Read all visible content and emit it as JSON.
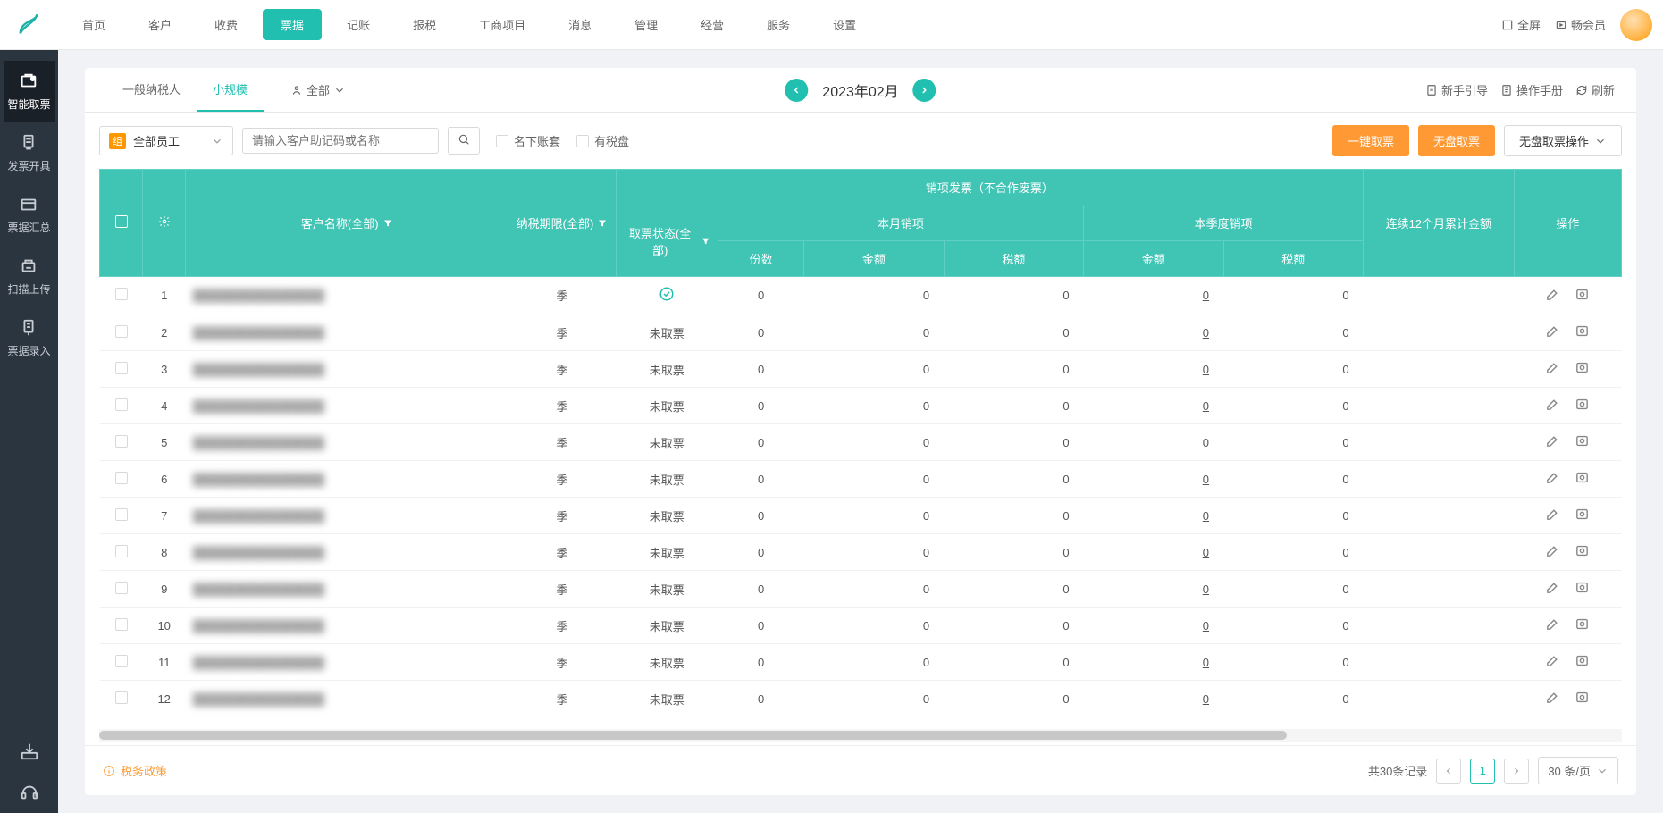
{
  "topnav": {
    "items": [
      "首页",
      "客户",
      "收费",
      "票据",
      "记账",
      "报税",
      "工商项目",
      "消息",
      "管理",
      "经营",
      "服务",
      "设置"
    ],
    "active_index": 3,
    "fullscreen": "全屏",
    "member": "畅会员"
  },
  "sidebar": {
    "items": [
      {
        "label": "智能取票"
      },
      {
        "label": "发票开具"
      },
      {
        "label": "票据汇总"
      },
      {
        "label": "扫描上传"
      },
      {
        "label": "票据录入"
      }
    ],
    "active_index": 0
  },
  "tabs": {
    "items": [
      "一般纳税人",
      "小规模"
    ],
    "active_index": 1,
    "scope_label": "全部",
    "period": "2023年02月",
    "guide": "新手引导",
    "manual": "操作手册",
    "refresh": "刷新"
  },
  "toolbar": {
    "staff_label": "全部员工",
    "search_placeholder": "请输入客户助记码或名称",
    "chk_sub": "名下账套",
    "chk_disk": "有税盘",
    "btn_fetch": "一键取票",
    "btn_nodisk_fetch": "无盘取票",
    "btn_nodisk_ops": "无盘取票操作"
  },
  "table": {
    "group_header": "销项发票（不合作废票）",
    "cols": {
      "customer": "客户名称(全部)",
      "tax_period": "纳税期限(全部)",
      "fetch_status": "取票状态(全部)",
      "month_group": "本月销项",
      "quarter_group": "本季度销项",
      "count": "份数",
      "amount": "金额",
      "tax": "税额",
      "rolling12": "连续12个月累计金额",
      "ops": "操作"
    },
    "status_pending": "未取票",
    "rows": [
      {
        "idx": 1,
        "period": "季",
        "status": "ok",
        "m_cnt": 0,
        "m_amt": "0",
        "m_tax": "0",
        "q_amt": "0",
        "q_tax": "0"
      },
      {
        "idx": 2,
        "period": "季",
        "status": "pending",
        "m_cnt": 0,
        "m_amt": "0",
        "m_tax": "0",
        "q_amt": "0",
        "q_tax": "0"
      },
      {
        "idx": 3,
        "period": "季",
        "status": "pending",
        "m_cnt": 0,
        "m_amt": "0",
        "m_tax": "0",
        "q_amt": "0",
        "q_tax": "0"
      },
      {
        "idx": 4,
        "period": "季",
        "status": "pending",
        "m_cnt": 0,
        "m_amt": "0",
        "m_tax": "0",
        "q_amt": "0",
        "q_tax": "0"
      },
      {
        "idx": 5,
        "period": "季",
        "status": "pending",
        "m_cnt": 0,
        "m_amt": "0",
        "m_tax": "0",
        "q_amt": "0",
        "q_tax": "0"
      },
      {
        "idx": 6,
        "period": "季",
        "status": "pending",
        "m_cnt": 0,
        "m_amt": "0",
        "m_tax": "0",
        "q_amt": "0",
        "q_tax": "0"
      },
      {
        "idx": 7,
        "period": "季",
        "status": "pending",
        "m_cnt": 0,
        "m_amt": "0",
        "m_tax": "0",
        "q_amt": "0",
        "q_tax": "0"
      },
      {
        "idx": 8,
        "period": "季",
        "status": "pending",
        "m_cnt": 0,
        "m_amt": "0",
        "m_tax": "0",
        "q_amt": "0",
        "q_tax": "0"
      },
      {
        "idx": 9,
        "period": "季",
        "status": "pending",
        "m_cnt": 0,
        "m_amt": "0",
        "m_tax": "0",
        "q_amt": "0",
        "q_tax": "0"
      },
      {
        "idx": 10,
        "period": "季",
        "status": "pending",
        "m_cnt": 0,
        "m_amt": "0",
        "m_tax": "0",
        "q_amt": "0",
        "q_tax": "0"
      },
      {
        "idx": 11,
        "period": "季",
        "status": "pending",
        "m_cnt": 0,
        "m_amt": "0",
        "m_tax": "0",
        "q_amt": "0",
        "q_tax": "0"
      },
      {
        "idx": 12,
        "period": "季",
        "status": "pending",
        "m_cnt": 0,
        "m_amt": "0",
        "m_tax": "0",
        "q_amt": "0",
        "q_tax": "0"
      }
    ]
  },
  "footer": {
    "policy": "税务政策",
    "total": "共30条记录",
    "page": "1",
    "page_size": "30 条/页"
  },
  "colors": {
    "accent": "#20bfb0",
    "header_bg": "#40c4b4",
    "orange": "#ff9933",
    "sidebar_bg": "#2b3540"
  }
}
